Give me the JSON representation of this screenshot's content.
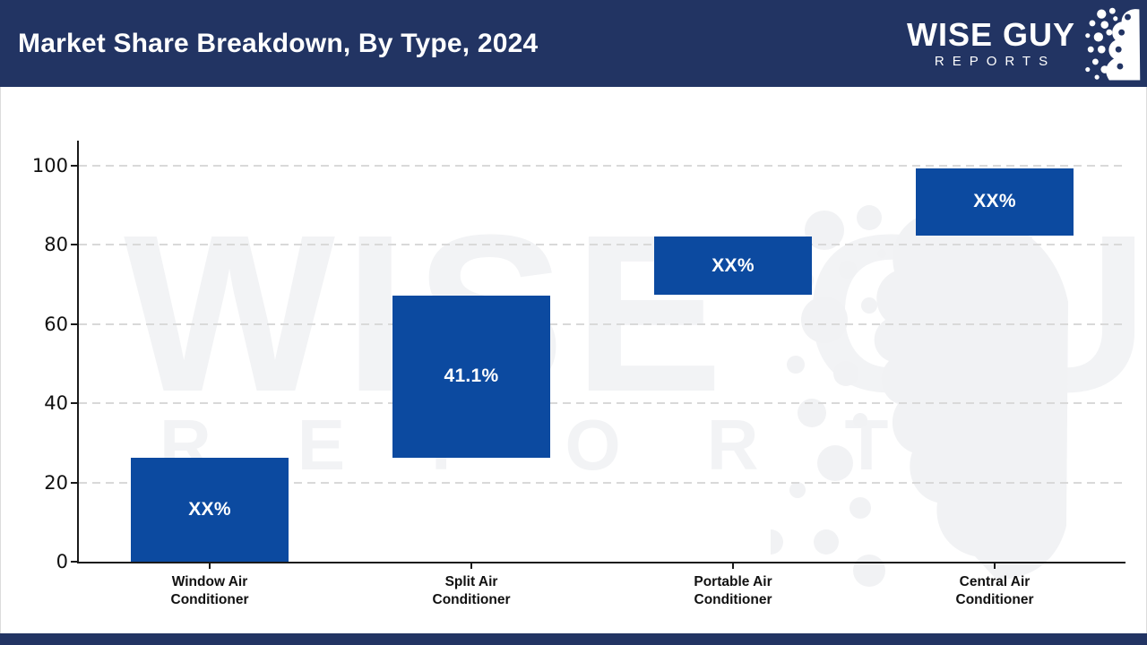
{
  "header": {
    "title": "Market Share Breakdown, By Type, 2024",
    "bg_color": "#223463",
    "logo": {
      "line1": "WISE GUY",
      "line2": "REPORTS"
    }
  },
  "watermark": {
    "line1": "WISE GUY",
    "line2": "REPORTS"
  },
  "colors": {
    "header_bg": "#223463",
    "footer_bg": "#223463",
    "bar": "#0c4aa0",
    "bar_label": "#ffffff",
    "grid": "#d9d9d9",
    "axis": "#1a1a1a",
    "watermark": "#f2f3f5"
  },
  "chart_data": {
    "type": "bar",
    "subtype": "floating-segment-waterfall",
    "title": "Market Share Breakdown, By Type, 2024",
    "categories": [
      "Window Air Conditioner",
      "Split Air Conditioner",
      "Portable Air Conditioner",
      "Central Air Conditioner"
    ],
    "category_label_lines": [
      [
        "Window Air",
        "Conditioner"
      ],
      [
        "Split Air",
        "Conditioner"
      ],
      [
        "Portable Air",
        "Conditioner"
      ],
      [
        "Central Air",
        "Conditioner"
      ]
    ],
    "segments": [
      {
        "category": "Window Air Conditioner",
        "start": 0,
        "end": 26.2,
        "label": "XX%"
      },
      {
        "category": "Split Air Conditioner",
        "start": 26.2,
        "end": 67.3,
        "label": "41.1%"
      },
      {
        "category": "Portable Air Conditioner",
        "start": 67.4,
        "end": 82.1,
        "label": "XX%"
      },
      {
        "category": "Central Air Conditioner",
        "start": 82.4,
        "end": 99.3,
        "label": "XX%"
      }
    ],
    "y_ticks": [
      0,
      20,
      40,
      60,
      80,
      100
    ],
    "ylim": [
      0,
      106
    ],
    "xlabel": "",
    "ylabel": "",
    "grid": "horizontal-dashed",
    "legend": "none"
  }
}
